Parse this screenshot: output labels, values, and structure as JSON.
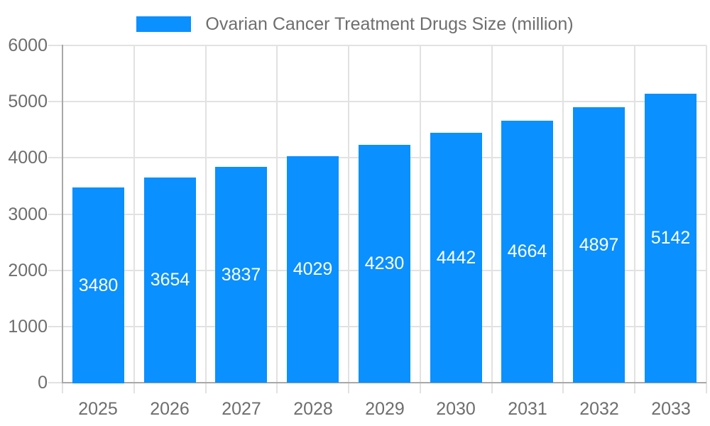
{
  "chart_data": {
    "type": "bar",
    "title": "Ovarian Cancer Treatment Drugs Size (million)",
    "categories": [
      "2025",
      "2026",
      "2027",
      "2028",
      "2029",
      "2030",
      "2031",
      "2032",
      "2033"
    ],
    "values": [
      3480,
      3654,
      3837,
      4029,
      4230,
      4442,
      4664,
      4897,
      5142
    ],
    "xlabel": "",
    "ylabel": "",
    "ylim": [
      0,
      6000
    ],
    "ytick_interval": 1000,
    "ytick_labels": [
      "0",
      "1000",
      "2000",
      "3000",
      "4000",
      "5000",
      "6000"
    ],
    "grid": true,
    "legend_position": "top",
    "value_label_position": "inside-center",
    "colors": {
      "bar": "#0A90FF",
      "grid": "#E2E2E2",
      "axis": "#A8A8A8",
      "tick_text": "#6E6E6E",
      "value_label": "#FFFFFF",
      "background": "#FFFFFF"
    }
  }
}
